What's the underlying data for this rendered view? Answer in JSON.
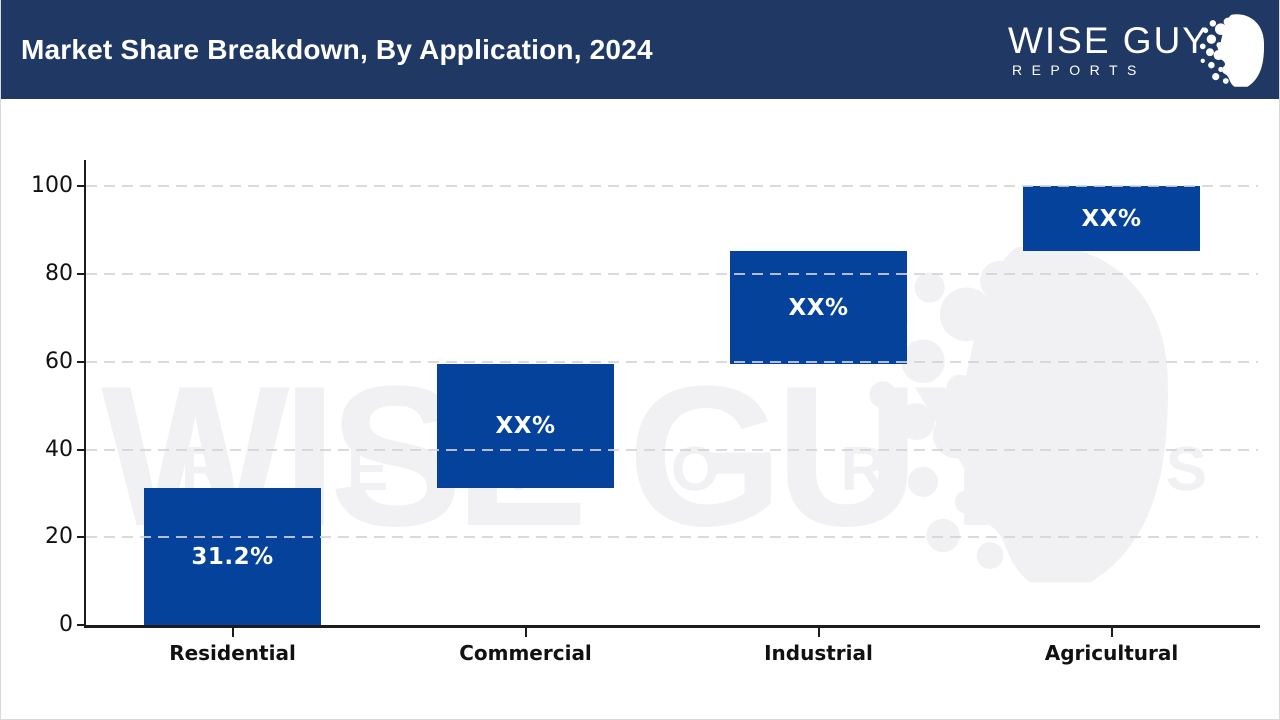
{
  "header": {
    "title": "Market Share Breakdown, By Application, 2024",
    "logo": {
      "line1": "WISE GUY",
      "line2": "REPORTS"
    }
  },
  "watermark": {
    "line1": "WISE GUY",
    "line2": "R E P O R T S"
  },
  "chart_data": {
    "type": "bar",
    "subtype": "floating-waterfall",
    "title": "Market Share Breakdown, By Application, 2024",
    "categories": [
      "Residential",
      "Commercial",
      "Industrial",
      "Agricultural"
    ],
    "series": [
      {
        "name": "Market Share",
        "ranges": [
          [
            0,
            31.2
          ],
          [
            31.2,
            59.5
          ],
          [
            59.5,
            85.2
          ],
          [
            85.2,
            100
          ]
        ]
      }
    ],
    "bar_labels": [
      "31.2%",
      "XX%",
      "XX%",
      "XX%"
    ],
    "yticks": [
      0,
      20,
      40,
      60,
      80,
      100
    ],
    "ylim": [
      0,
      106
    ],
    "xlabel": "",
    "ylabel": "",
    "grid": "horizontal-dashed",
    "legend": "none",
    "colors": {
      "bar": "#05429b",
      "header_bg": "#1f3864",
      "grid": "#d3d3d6",
      "axis": "#1c1c1c",
      "bar_label_text": "#ffffff",
      "watermark": "#f1f1f4"
    }
  }
}
